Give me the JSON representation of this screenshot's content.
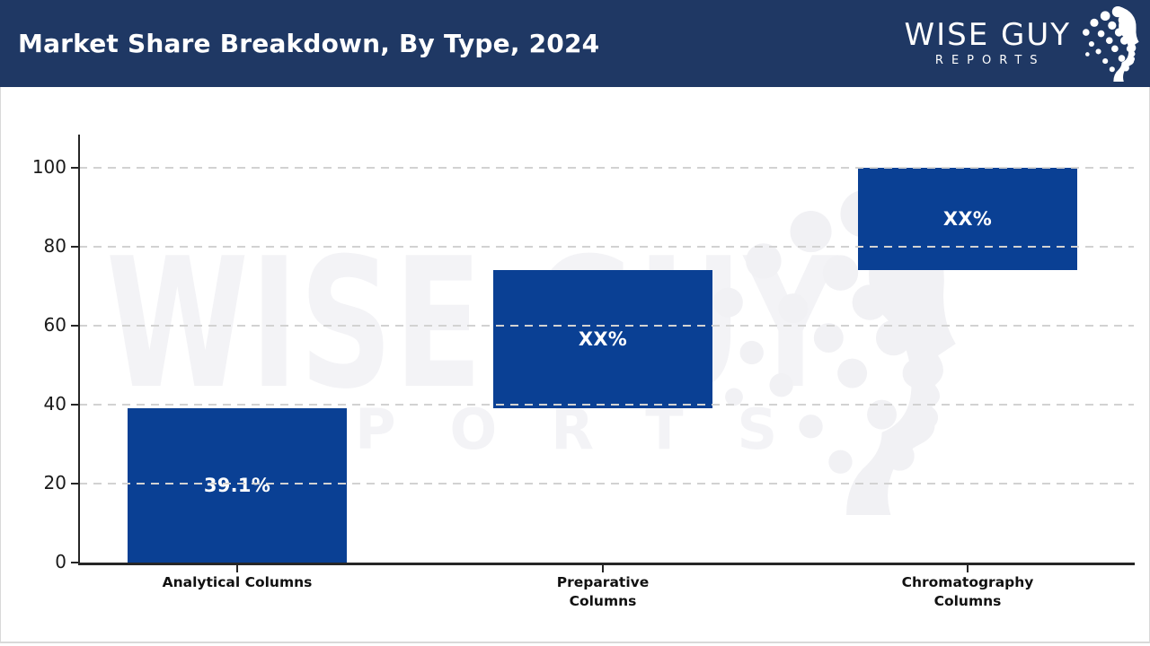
{
  "header": {
    "title": "Market Share Breakdown, By Type, 2024",
    "logo": {
      "line1": "WISE GUY",
      "line2": "REPORTS"
    }
  },
  "watermark": {
    "text1": "WISE GUY",
    "text2": "REPORTS"
  },
  "colors": {
    "header_bg": "#1f3864",
    "bar": "#0a4094",
    "bar_label_text": "#ffffff",
    "axis": "#262626",
    "grid": "#d2d2d2",
    "watermark": "#f3f3f6",
    "tick_text": "#1a1a1a"
  },
  "chart_data": {
    "type": "bar",
    "variant": "waterfall",
    "title": "Market Share Breakdown, By Type, 2024",
    "categories": [
      "Analytical Columns",
      "Preparative\nColumns",
      "Chromatography\nColumns"
    ],
    "bars": [
      {
        "category": "Analytical Columns",
        "base": 0,
        "top": 39.1,
        "label": "39.1%"
      },
      {
        "category": "Preparative Columns",
        "base": 39.1,
        "top": 74.1,
        "label": "XX%"
      },
      {
        "category": "Chromatography Columns",
        "base": 74.1,
        "top": 100,
        "label": "XX%"
      }
    ],
    "yticks": [
      0,
      20,
      40,
      60,
      80,
      100
    ],
    "ylim": [
      0,
      108
    ],
    "xlabel": "",
    "ylabel": "",
    "grid": "horizontal-dashed",
    "legend": "none"
  }
}
